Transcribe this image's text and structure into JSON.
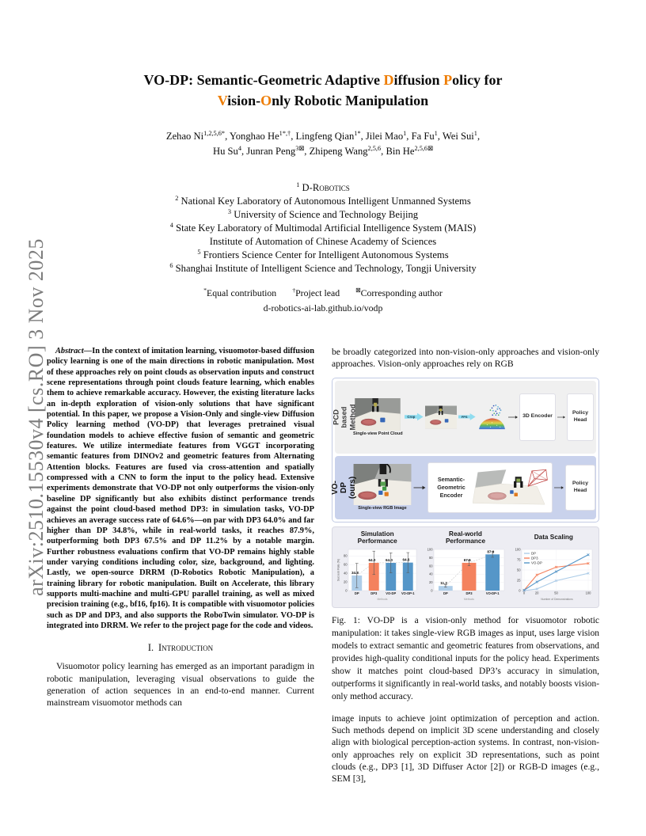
{
  "arxiv_banner": "arXiv:2510.15530v4  [cs.RO]  3 Nov 2025",
  "colors": {
    "accent": "#ee7c00",
    "dp": "#aecde8",
    "dp3": "#f4825e",
    "vodp": "#5596c8",
    "lavender": "#c9d2ec",
    "panel_gray": "#f0f0f0",
    "cyan_arrow": "#8fdcef"
  },
  "title": {
    "lines": [
      [
        {
          "t": "VO-DP: Semantic-Geometric Adaptive "
        },
        {
          "t": "D",
          "a": true
        },
        {
          "t": "iffusion "
        },
        {
          "t": "P",
          "a": true
        },
        {
          "t": "olicy for"
        }
      ],
      [
        {
          "t": "V",
          "a": true
        },
        {
          "t": "ision-"
        },
        {
          "t": "O",
          "a": true
        },
        {
          "t": "nly Robotic Manipulation"
        }
      ]
    ]
  },
  "authors": {
    "lines": [
      [
        {
          "name": "Zehao Ni",
          "sup": "1,2,5,6*"
        },
        {
          "name": "Yonghao He",
          "sup": "1*,†"
        },
        {
          "name": "Lingfeng Qian",
          "sup": "1*"
        },
        {
          "name": "Jilei Mao",
          "sup": "1"
        },
        {
          "name": "Fa Fu",
          "sup": "1"
        },
        {
          "name": "Wei Sui",
          "sup": "1"
        }
      ],
      [
        {
          "name": "Hu Su",
          "sup": "4"
        },
        {
          "name": "Junran Peng",
          "sup": "3⊠"
        },
        {
          "name": "Zhipeng Wang",
          "sup": "2,5,6"
        },
        {
          "name": "Bin He",
          "sup": "2,5,6⊠"
        }
      ]
    ],
    "line_endings": [
      ",",
      ""
    ]
  },
  "affiliations": [
    {
      "sup": "1",
      "text": "D-Robotics",
      "smallcaps": true
    },
    {
      "sup": "2",
      "text": "National Key Laboratory of Autonomous Intelligent Unmanned Systems"
    },
    {
      "sup": "3",
      "text": "University of Science and Technology Beijing"
    },
    {
      "sup": "4",
      "text": "State Key Laboratory of Multimodal Artificial Intelligence System (MAIS)"
    },
    {
      "sup": "",
      "text": "Institute of Automation of Chinese Academy of Sciences"
    },
    {
      "sup": "5",
      "text": "Frontiers Science Center for Intelligent Autonomous Systems"
    },
    {
      "sup": "6",
      "text": "Shanghai Institute of Intelligent Science and Technology, Tongji University"
    }
  ],
  "footnotes": {
    "items": [
      {
        "sup": "*",
        "text": "Equal contribution"
      },
      {
        "sup": "†",
        "text": "Project lead"
      },
      {
        "sup": "⊠",
        "text": "Corresponding author"
      }
    ],
    "url": "d-robotics-ai-lab.github.io/vodp"
  },
  "abstract": {
    "label": "Abstract",
    "text": "In the context of imitation learning, visuomotor-based diffusion policy learning is one of the main directions in robotic manipulation. Most of these approaches rely on point clouds as observation inputs and construct scene representations through point clouds feature learning, which enables them to achieve remarkable accuracy. However, the existing literature lacks an in-depth exploration of vision-only solutions that have significant potential. In this paper, we propose a Vision-Only and single-view Diffusion Policy learning method (VO-DP) that leverages pretrained visual foundation models to achieve effective fusion of semantic and geometric features. We utilize intermediate features from VGGT incorporating semantic features from DINOv2 and geometric features from Alternating Attention blocks. Features are fused via cross-attention and spatially compressed with a CNN to form the input to the policy head. Extensive experiments demonstrate that VO-DP not only outperforms the vision-only baseline DP significantly but also exhibits distinct performance trends against the point cloud-based method DP3: in simulation tasks, VO-DP achieves an average success rate of 64.6%—on par with DP3 64.0% and far higher than DP 34.8%, while in real-world tasks, it reaches 87.9%, outperforming both DP3 67.5% and DP 11.2% by a notable margin. Further robustness evaluations confirm that VO-DP remains highly stable under varying conditions including color, size, background, and lighting. Lastly, we open-source DRRM (D-Robotics Robotic Manipulation), a training library for robotic manipulation. Built on Accelerate, this library supports multi-machine and multi-GPU parallel training, as well as mixed precision training (e.g., bf16, fp16). It is compatible with visuomotor policies such as DP and DP3, and also supports the RoboTwin simulator. VO-DP is integrated into DRRM. We refer to the project page for the code and videos."
  },
  "sections": {
    "intro_heading": {
      "number": "I.",
      "title": "Introduction"
    }
  },
  "left_column": {
    "intro_paragraph": "Visuomotor policy learning has emerged as an important paradigm in robotic manipulation, leveraging visual observations to guide the generation of action sequences in an end-to-end manner. Current mainstream visuomotor methods can"
  },
  "right_column": {
    "para_top": "be broadly categorized into non-vision-only approaches and vision-only approaches. Vision-only approaches rely on RGB",
    "para_bottom": "image inputs to achieve joint optimization of perception and action. Such methods depend on implicit 3D scene understanding and closely align with biological perception-action systems. In contrast, non-vision-only approaches rely on explicit 3D representations, such as point clouds (e.g., DP3 [1], 3D Diffuser Actor [2]) or RGB-D images (e.g., SEM [3],"
  },
  "figure": {
    "pcd_row": {
      "label": "PCD based\nMethod",
      "photo_caption": "Single-view Point Cloud",
      "crop_arrow": "Crop",
      "fps_arrow": "FPS",
      "encoder_box": "3D Encoder",
      "policy_box": "Policy Head"
    },
    "vodp_row": {
      "label": "VO-DP\n(ours)",
      "photo_caption": "Single-view RGB Image",
      "encoder_box": "Semantic-Geometric Encoder",
      "policy_box": "Policy Head"
    }
  },
  "figure_caption": {
    "tag": "Fig. 1:",
    "text": "VO-DP is a vision-only method for visuomotor robotic manipulation: it takes single-view RGB images as input, uses large vision models to extract semantic and geometric features from observations, and provides high-quality conditional inputs for the policy head. Experiments show it matches point cloud-based DP3’s accuracy in simulation, outperforms it significantly in real-world tasks, and notably boosts vision-only method accuracy."
  },
  "chart_data": [
    {
      "type": "bar",
      "title": "Simulation Performance",
      "categories": [
        "DP",
        "DP3",
        "VO-DP",
        "VO-DP-1"
      ],
      "values": [
        34.8,
        64.0,
        64.0,
        64.6
      ],
      "errors": [
        28,
        27,
        23,
        23
      ],
      "bar_colors": [
        "#aecde8",
        "#f4825e",
        "#5596c8",
        "#5596c8"
      ],
      "xlabel": "Methods",
      "ylabel": "Success Rate (%)",
      "ylim": [
        0,
        95
      ],
      "yticks": [
        0,
        20,
        40,
        60,
        80
      ],
      "grid": true
    },
    {
      "type": "bar",
      "title": "Real-world Performance",
      "categories": [
        "DP",
        "DP3",
        "VO-DP-1"
      ],
      "values": [
        11.2,
        67.5,
        87.9
      ],
      "errors": [
        3,
        7,
        7
      ],
      "bar_colors": [
        "#aecde8",
        "#f4825e",
        "#5596c8"
      ],
      "xlabel": "Methods",
      "ylabel": "",
      "ylim": [
        0,
        100
      ],
      "yticks": [
        0,
        20,
        40,
        60,
        80,
        100
      ],
      "grid": true
    },
    {
      "type": "line",
      "title": "Data Scaling",
      "x": [
        0,
        20,
        50,
        100
      ],
      "series": [
        {
          "name": "DP",
          "color": "#aecde8",
          "values": [
            0,
            4,
            24,
            42
          ]
        },
        {
          "name": "DP3",
          "color": "#f4825e",
          "values": [
            1,
            38,
            57,
            66
          ]
        },
        {
          "name": "VO-DP",
          "color": "#5596c8",
          "values": [
            1,
            21,
            46,
            87
          ]
        }
      ],
      "xlabel": "Number of Demonstrations",
      "ylim": [
        0,
        100
      ],
      "yticks": [
        0,
        25,
        50,
        75,
        100
      ],
      "legend_position": "upper-left",
      "grid": true
    }
  ]
}
